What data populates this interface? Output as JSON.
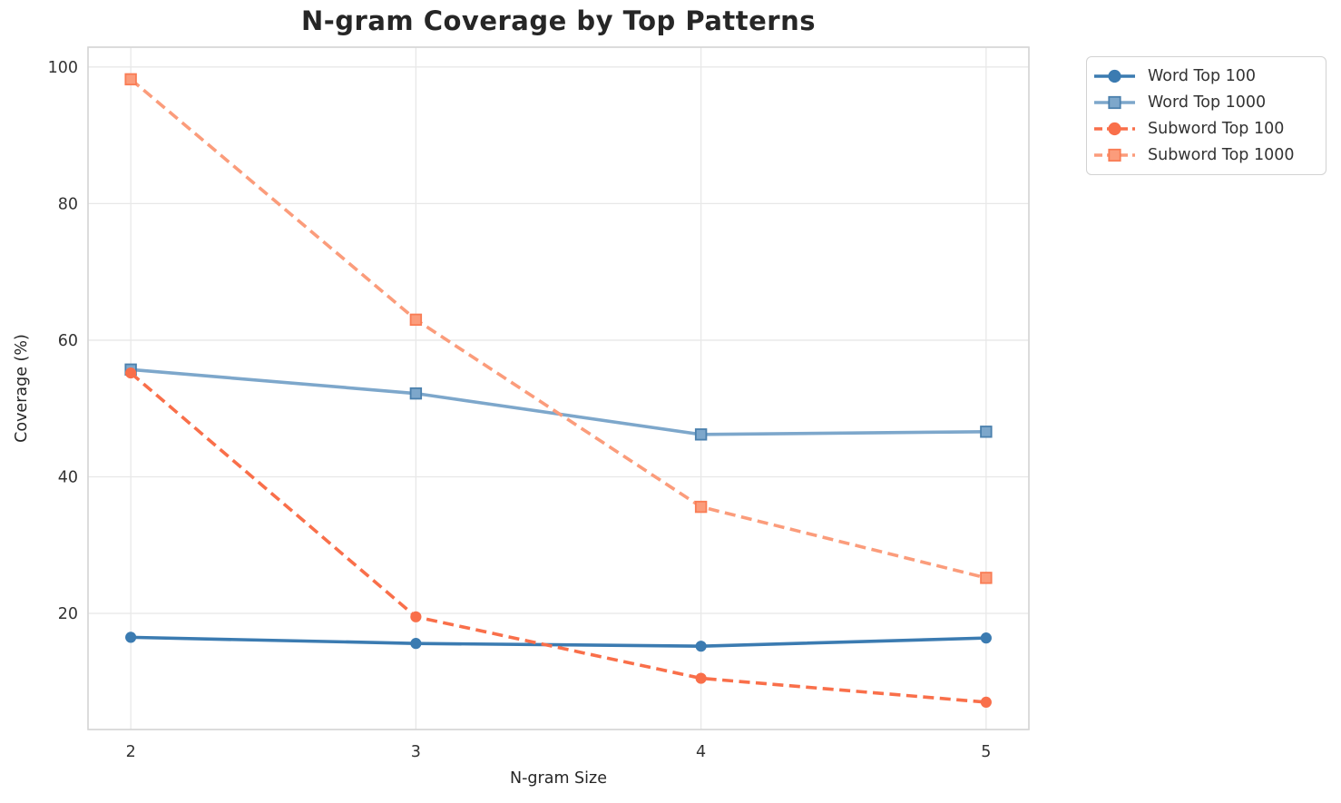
{
  "chart_data": {
    "type": "line",
    "title": "N-gram Coverage by Top Patterns",
    "xlabel": "N-gram Size",
    "ylabel": "Coverage (%)",
    "x": [
      2,
      3,
      4,
      5
    ],
    "xticks": [
      "2",
      "3",
      "4",
      "5"
    ],
    "yticks": [
      20,
      40,
      60,
      80,
      100
    ],
    "xlim": [
      1.85,
      5.15
    ],
    "ylim": [
      3.0,
      102.9
    ],
    "grid": true,
    "legend_position": "upper-right-outside",
    "series": [
      {
        "name": "Word Top 100",
        "values": [
          16.5,
          15.6,
          15.2,
          16.4
        ],
        "color": "#3b7bb1",
        "line_style": "solid",
        "marker": "circle",
        "marker_fill": "#3b7bb1",
        "marker_edge": "#3b7bb1"
      },
      {
        "name": "Word Top 1000",
        "values": [
          55.7,
          52.2,
          46.2,
          46.6
        ],
        "color": "#7da7cb",
        "line_style": "solid",
        "marker": "square",
        "marker_fill": "#7da7cb",
        "marker_edge": "#4b80ad"
      },
      {
        "name": "Subword Top 100",
        "values": [
          55.2,
          19.5,
          10.5,
          7.0
        ],
        "color": "#f96f4a",
        "line_style": "dashed",
        "marker": "circle",
        "marker_fill": "#f96f4a",
        "marker_edge": "#f96f4a"
      },
      {
        "name": "Subword Top 1000",
        "values": [
          98.2,
          63.0,
          35.6,
          25.2
        ],
        "color": "#fb9c7b",
        "line_style": "dashed",
        "marker": "square",
        "marker_fill": "#fb9c7b",
        "marker_edge": "#f97c54"
      }
    ],
    "style": {
      "grid_color": "#e8e8e8",
      "spine_color": "#d4d4d4",
      "tick_label_color": "#333333"
    }
  }
}
